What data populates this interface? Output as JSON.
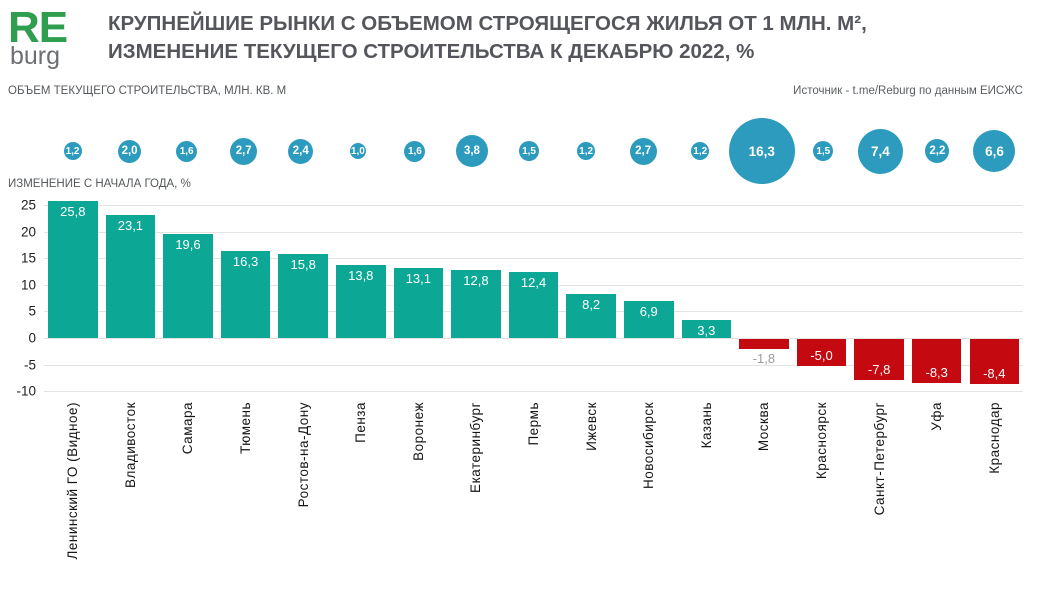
{
  "logo": {
    "line1": "RE",
    "line2": "burg"
  },
  "title": {
    "line1": "КРУПНЕЙШИЕ РЫНКИ С ОБЪЕМОМ СТРОЯЩЕГОСЯ ЖИЛЬЯ ОТ 1 МЛН. М²,",
    "line2": "ИЗМЕНЕНИЕ ТЕКУЩЕГО СТРОИТЕЛЬСТВА  К ДЕКАБРЮ 2022, %"
  },
  "subtitles": {
    "volume": "ОБЪЕМ ТЕКУЩЕГО СТРОИТЕЛЬСТВА, МЛН. КВ. М",
    "change": "ИЗМЕНЕНИЕ С НАЧАЛА ГОДА, %",
    "source": "Источник - t.me/Reburg по данным ЕИСЖС"
  },
  "colors": {
    "positive_bar": "#0da796",
    "negative_bar": "#c40a10",
    "bubble": "#2d9bbd",
    "logo_green": "#2f9e4e",
    "logo_gray": "#6d7073",
    "title_text": "#54565b",
    "muted_label": "#9b9b9b",
    "grid": "#e3e3e3"
  },
  "chart_data": {
    "type": "bar",
    "title": "КРУПНЕЙШИЕ РЫНКИ С ОБЪЕМОМ СТРОЯЩЕГОСЯ ЖИЛЬЯ ОТ 1 МЛН. М², ИЗМЕНЕНИЕ ТЕКУЩЕГО СТРОИТЕЛЬСТВА К ДЕКАБРЮ 2022, %",
    "categories": [
      "Ленинский ГО (Видное)",
      "Владивосток",
      "Самара",
      "Тюмень",
      "Ростов-на-Дону",
      "Пенза",
      "Воронеж",
      "Екатеринбург",
      "Пермь",
      "Ижевск",
      "Новосибирск",
      "Казань",
      "Москва",
      "Красноярск",
      "Санкт-Петербург",
      "Уфа",
      "Краснодар"
    ],
    "series": [
      {
        "name": "ОБЪЕМ ТЕКУЩЕГО СТРОИТЕЛЬСТВА, МЛН. КВ. М",
        "type": "bubble",
        "values": [
          1.2,
          2.0,
          1.6,
          2.7,
          2.4,
          1.0,
          1.6,
          3.8,
          1.5,
          1.2,
          2.7,
          1.2,
          16.3,
          1.5,
          7.4,
          2.2,
          6.6
        ]
      },
      {
        "name": "ИЗМЕНЕНИЕ С НАЧАЛА ГОДА, %",
        "type": "bar",
        "values": [
          25.8,
          23.1,
          19.6,
          16.3,
          15.8,
          13.8,
          13.1,
          12.8,
          12.4,
          8.2,
          6.9,
          3.3,
          -1.8,
          -5.0,
          -7.8,
          -8.3,
          -8.4
        ]
      }
    ],
    "yticks": [
      25,
      20,
      15,
      10,
      5,
      0,
      -5,
      -10
    ],
    "ylim": [
      -11.3,
      25.9
    ],
    "grid": "horizontal",
    "legend": "none",
    "decimal_separator": ","
  }
}
